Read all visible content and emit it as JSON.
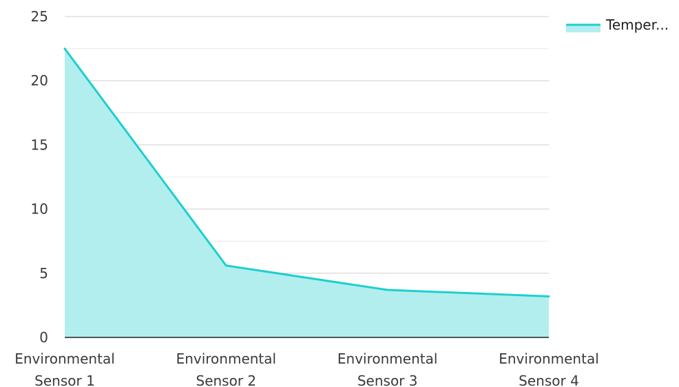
{
  "chart_data": {
    "type": "area",
    "categories": [
      "Environmental Sensor 1",
      "Environmental Sensor 2",
      "Environmental Sensor 3",
      "Environmental Sensor 4"
    ],
    "category_lines": [
      [
        "Environmental",
        "Sensor 1"
      ],
      [
        "Environmental",
        "Sensor 2"
      ],
      [
        "Environmental",
        "Sensor 3"
      ],
      [
        "Environmental",
        "Sensor 4"
      ]
    ],
    "series": [
      {
        "name": "Temper...",
        "values": [
          22.5,
          5.6,
          3.7,
          3.2
        ],
        "color": "#1ecfcf",
        "fill": "#b2eeee"
      }
    ],
    "y_ticks": [
      "0",
      "5",
      "10",
      "15",
      "20",
      "25"
    ],
    "ylim": [
      0,
      25
    ],
    "grid": true,
    "legend": "top-right",
    "title": "",
    "xlabel": "",
    "ylabel": ""
  }
}
